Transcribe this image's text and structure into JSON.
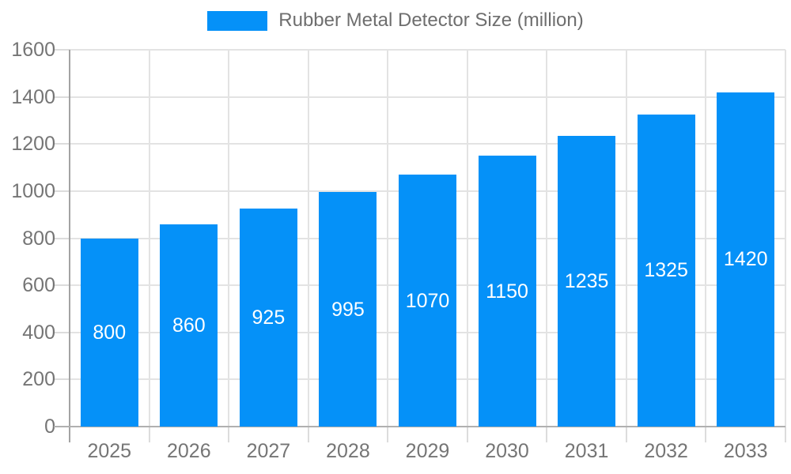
{
  "chart_data": {
    "type": "bar",
    "title": "Rubber Metal Detector Size (million)",
    "categories": [
      "2025",
      "2026",
      "2027",
      "2028",
      "2029",
      "2030",
      "2031",
      "2032",
      "2033"
    ],
    "values": [
      800,
      860,
      925,
      995,
      1070,
      1150,
      1235,
      1325,
      1420
    ],
    "xlabel": "",
    "ylabel": "",
    "ylim": [
      0,
      1600
    ],
    "ytick_step": 200,
    "ytick_labels": [
      "0",
      "200",
      "400",
      "600",
      "800",
      "1000",
      "1200",
      "1400",
      "1600"
    ],
    "grid": true,
    "legend_position": "top-center",
    "value_labels": "inside-center",
    "colors": {
      "bar": "#0591f8",
      "bar_value_text": "#ffffff",
      "axis_text": "#757575",
      "legend_text": "#6e6e6e",
      "gridline": "#e3e3e3",
      "axis_line": "#a8a8a8",
      "background": "#ffffff"
    }
  }
}
